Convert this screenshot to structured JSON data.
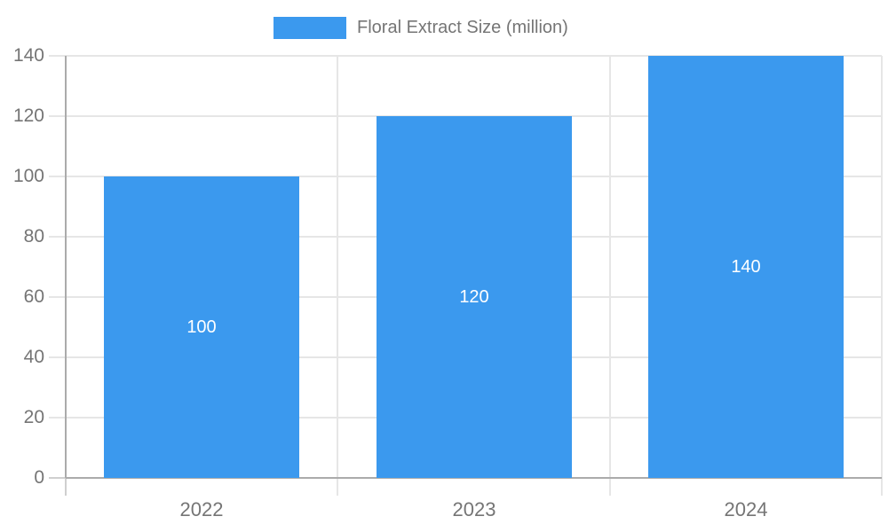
{
  "legend": {
    "label": "Floral Extract Size (million)"
  },
  "chart_data": {
    "type": "bar",
    "title": "Floral Extract Size (million)",
    "series_name": "Floral Extract Size (million)",
    "categories": [
      "2022",
      "2023",
      "2024"
    ],
    "values": [
      100,
      120,
      140
    ],
    "bar_labels": [
      "100",
      "120",
      "140"
    ],
    "xlabel": "",
    "ylabel": "",
    "ylim": [
      0,
      140
    ],
    "y_ticks": [
      0,
      20,
      40,
      60,
      80,
      100,
      120,
      140
    ],
    "grid": true,
    "legend_position": "top"
  },
  "colors": {
    "bar": "#3B99EE",
    "axis_text": "#757575",
    "grid": "#E6E6E6",
    "axis_line": "#ABABAB",
    "tick_stub": "#CFCFCF",
    "bar_label_text": "#FFFFFF",
    "background": "#FFFFFF"
  }
}
